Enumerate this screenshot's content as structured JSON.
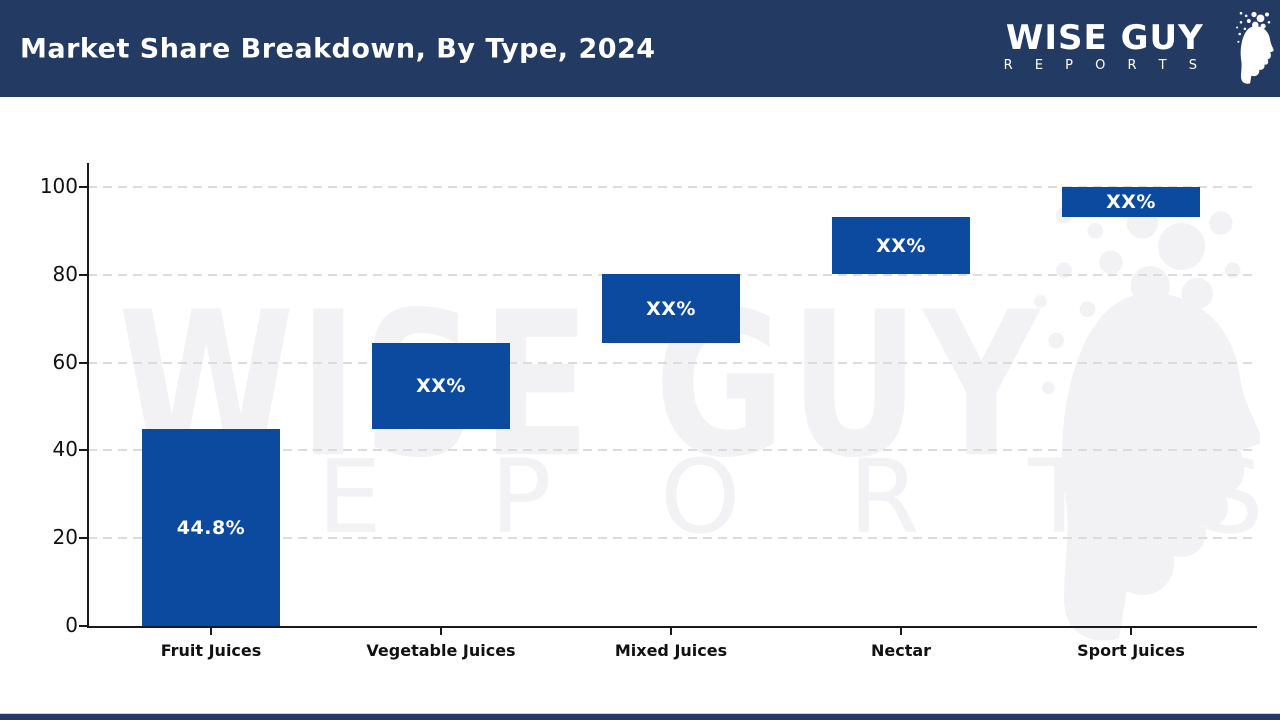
{
  "header": {
    "title": "Market Share Breakdown, By Type, 2024",
    "logo": {
      "primary": "WISE GUY",
      "secondary": "R E P O R T S"
    }
  },
  "watermark": {
    "primary": "WISE GUY",
    "secondary": "R E P O R T S"
  },
  "colors": {
    "header_bg": "#233a63",
    "footer_bg": "#233a63",
    "bar": "#0c4aa0",
    "grid": "#dcdcdc",
    "axis": "#1a1a1a",
    "bar_label": "#ffffff",
    "watermark": "#f2f2f5"
  },
  "chart_data": {
    "type": "bar",
    "subtype": "waterfall",
    "title": "Market Share Breakdown, By Type, 2024",
    "categories": [
      "Fruit Juices",
      "Vegetable Juices",
      "Mixed Juices",
      "Nectar",
      "Sport Juices"
    ],
    "segments": [
      {
        "category": "Fruit Juices",
        "start": 0,
        "end": 44.8,
        "label": "44.8%"
      },
      {
        "category": "Vegetable Juices",
        "start": 44.8,
        "end": 64.4,
        "label": "XX%"
      },
      {
        "category": "Mixed Juices",
        "start": 64.4,
        "end": 80.1,
        "label": "XX%"
      },
      {
        "category": "Nectar",
        "start": 80.1,
        "end": 93.2,
        "label": "XX%"
      },
      {
        "category": "Sport Juices",
        "start": 93.2,
        "end": 100,
        "label": "XX%"
      }
    ],
    "yticks": [
      0,
      20,
      40,
      60,
      80,
      100
    ],
    "ylim": [
      0,
      105
    ],
    "xlabel": "",
    "ylabel": "",
    "grid": "horizontal-dashed",
    "legend": "none"
  }
}
